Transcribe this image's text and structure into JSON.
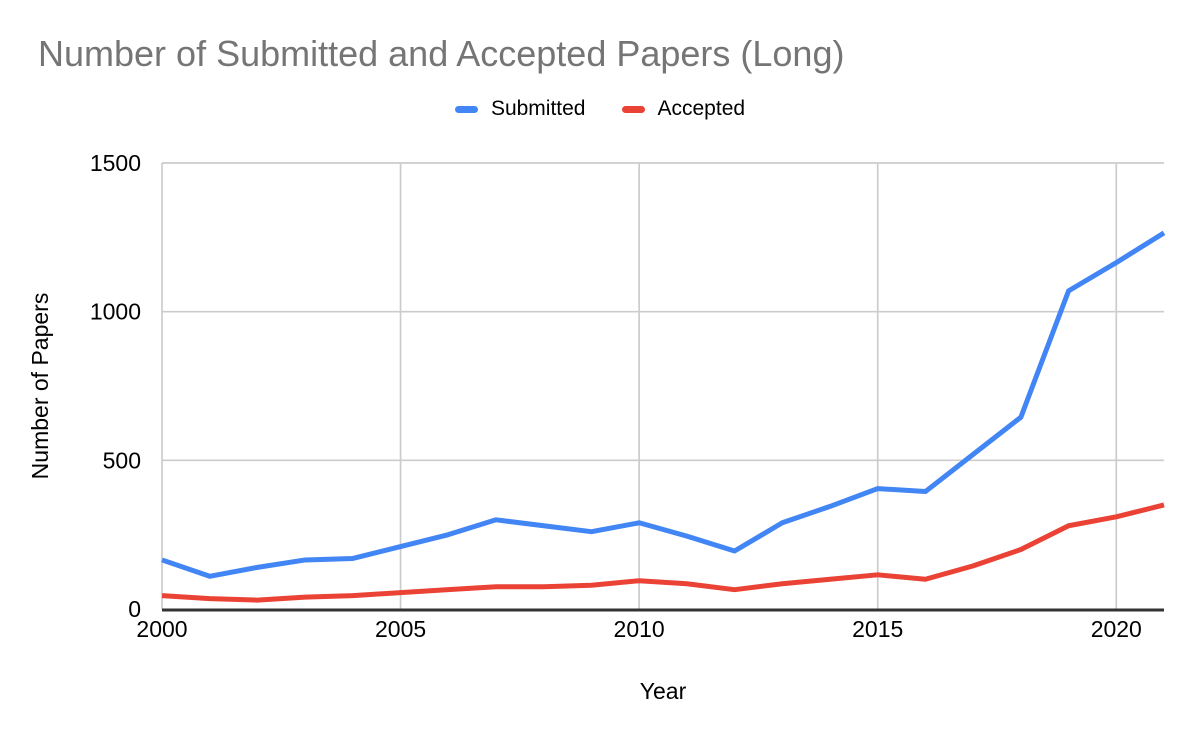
{
  "title": "Number of Submitted and Accepted Papers (Long)",
  "colors": {
    "title_gray": "#757575",
    "gridline": "#cccccc",
    "axis_line": "#333333",
    "submitted_blue": "#4285f4",
    "accepted_red": "#ea4335",
    "label_black": "#000000"
  },
  "legend": {
    "items": [
      {
        "label": "Submitted",
        "color": "#4285f4"
      },
      {
        "label": "Accepted",
        "color": "#ea4335"
      }
    ]
  },
  "chart_data": {
    "type": "line",
    "title": "Number of Submitted and Accepted Papers (Long)",
    "xlabel": "Year",
    "ylabel": "Number of Papers",
    "x": [
      2000,
      2001,
      2002,
      2003,
      2004,
      2005,
      2006,
      2007,
      2008,
      2009,
      2010,
      2011,
      2012,
      2013,
      2014,
      2015,
      2016,
      2017,
      2018,
      2019,
      2020,
      2021
    ],
    "series": [
      {
        "name": "Submitted",
        "color": "#4285f4",
        "values": [
          165,
          110,
          140,
          165,
          170,
          210,
          250,
          300,
          280,
          260,
          290,
          245,
          195,
          290,
          345,
          405,
          395,
          520,
          645,
          1070,
          1165,
          1265
        ]
      },
      {
        "name": "Accepted",
        "color": "#ea4335",
        "values": [
          45,
          35,
          30,
          40,
          45,
          55,
          65,
          75,
          75,
          80,
          95,
          85,
          65,
          85,
          100,
          115,
          100,
          145,
          200,
          280,
          310,
          350
        ]
      }
    ],
    "xlim": [
      2000,
      2021
    ],
    "ylim": [
      0,
      1500
    ],
    "yticks": [
      0,
      500,
      1000,
      1500
    ],
    "xticks": [
      2000,
      2005,
      2010,
      2015,
      2020
    ],
    "grid": true,
    "legend_position": "top"
  }
}
